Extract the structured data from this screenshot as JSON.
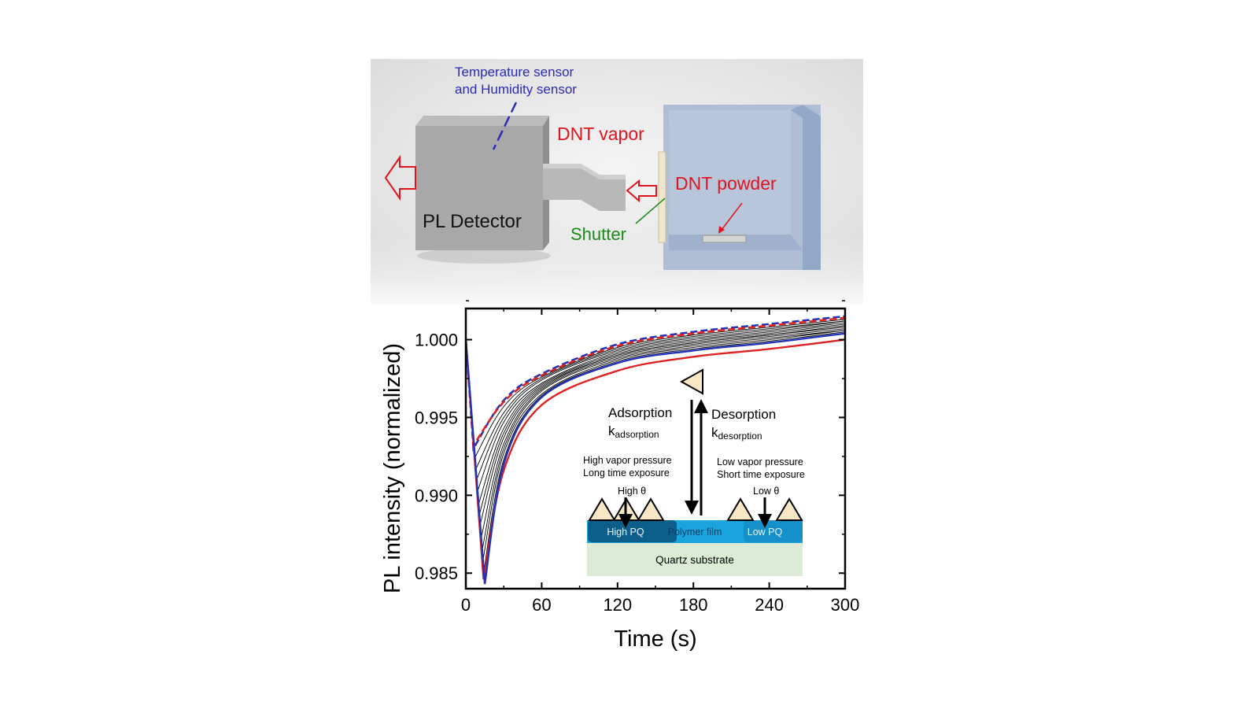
{
  "setup": {
    "sensor_label_line1": "Temperature sensor",
    "sensor_label_line2": "and Humidity sensor",
    "vapor_label": "DNT vapor",
    "powder_label": "DNT powder",
    "detector_label": "PL Detector",
    "shutter_label": "Shutter",
    "colors": {
      "blue_text": "#2a2ab8",
      "red_text": "#e0141e",
      "green_text": "#1a8a1a"
    }
  },
  "chart_data": {
    "type": "line",
    "xlabel": "Time (s)",
    "ylabel": "PL intensity (normalized)",
    "xlim": [
      0,
      300
    ],
    "ylim": [
      0.984,
      1.002
    ],
    "xticks": [
      0,
      60,
      120,
      180,
      240,
      300
    ],
    "xtick_labels": [
      "0",
      "60",
      "120",
      "180",
      "240",
      "300"
    ],
    "yticks": [
      0.985,
      0.99,
      0.995,
      1.0
    ],
    "ytick_labels": [
      "0.985",
      "0.990",
      "0.995",
      "1.000"
    ],
    "grid": false,
    "series": [
      {
        "color": "#2233bb",
        "style": "dashed",
        "points": [
          [
            0,
            1.0
          ],
          [
            6,
            0.993
          ],
          [
            30,
            0.9961
          ],
          [
            60,
            0.9978
          ],
          [
            120,
            0.9997
          ],
          [
            180,
            1.0005
          ],
          [
            240,
            1.001
          ],
          [
            300,
            1.0015
          ]
        ]
      },
      {
        "color": "#dd2222",
        "style": "dashed",
        "points": [
          [
            0,
            1.0
          ],
          [
            6,
            0.9932
          ],
          [
            30,
            0.996
          ],
          [
            60,
            0.9977
          ],
          [
            120,
            0.9996
          ],
          [
            180,
            1.0004
          ],
          [
            240,
            1.0009
          ],
          [
            300,
            1.0014
          ]
        ]
      },
      {
        "color": "#000000",
        "style": "thin",
        "points": [
          [
            0,
            1.0
          ],
          [
            7,
            0.9924
          ],
          [
            30,
            0.9957
          ],
          [
            60,
            0.9976
          ],
          [
            120,
            0.9995
          ],
          [
            180,
            1.0003
          ],
          [
            240,
            1.0008
          ],
          [
            300,
            1.0013
          ]
        ]
      },
      {
        "color": "#000000",
        "style": "thin",
        "points": [
          [
            0,
            1.0
          ],
          [
            7.5,
            0.9916
          ],
          [
            30,
            0.9953
          ],
          [
            60,
            0.9975
          ],
          [
            120,
            0.9994
          ],
          [
            180,
            1.0002
          ],
          [
            240,
            1.0007
          ],
          [
            300,
            1.0012
          ]
        ]
      },
      {
        "color": "#000000",
        "style": "thin",
        "points": [
          [
            0,
            1.0
          ],
          [
            8,
            0.9909
          ],
          [
            30,
            0.995
          ],
          [
            60,
            0.9974
          ],
          [
            120,
            0.9993
          ],
          [
            180,
            1.0001
          ],
          [
            240,
            1.0006
          ],
          [
            300,
            1.0012
          ]
        ]
      },
      {
        "color": "#000000",
        "style": "thin",
        "points": [
          [
            0,
            1.0
          ],
          [
            9,
            0.9902
          ],
          [
            30,
            0.9947
          ],
          [
            60,
            0.9972
          ],
          [
            120,
            0.9992
          ],
          [
            180,
            1.0
          ],
          [
            240,
            1.0005
          ],
          [
            300,
            1.0011
          ]
        ]
      },
      {
        "color": "#000000",
        "style": "thin",
        "points": [
          [
            0,
            1.0
          ],
          [
            10,
            0.9894
          ],
          [
            30,
            0.9943
          ],
          [
            60,
            0.9971
          ],
          [
            120,
            0.9991
          ],
          [
            180,
            0.9999
          ],
          [
            240,
            1.0004
          ],
          [
            300,
            1.001
          ]
        ]
      },
      {
        "color": "#000000",
        "style": "thin",
        "points": [
          [
            0,
            1.0
          ],
          [
            10.5,
            0.9887
          ],
          [
            30,
            0.994
          ],
          [
            60,
            0.997
          ],
          [
            120,
            0.999
          ],
          [
            180,
            0.9998
          ],
          [
            240,
            1.0003
          ],
          [
            300,
            1.0009
          ]
        ]
      },
      {
        "color": "#000000",
        "style": "thin",
        "points": [
          [
            0,
            1.0
          ],
          [
            11,
            0.988
          ],
          [
            30,
            0.9937
          ],
          [
            60,
            0.9969
          ],
          [
            120,
            0.999
          ],
          [
            180,
            0.9998
          ],
          [
            240,
            1.0003
          ],
          [
            300,
            1.0008
          ]
        ]
      },
      {
        "color": "#000000",
        "style": "thin",
        "points": [
          [
            0,
            1.0
          ],
          [
            12,
            0.9872
          ],
          [
            30,
            0.9933
          ],
          [
            60,
            0.9968
          ],
          [
            120,
            0.9989
          ],
          [
            180,
            0.9997
          ],
          [
            240,
            1.0002
          ],
          [
            300,
            1.0007
          ]
        ]
      },
      {
        "color": "#000000",
        "style": "thin",
        "points": [
          [
            0,
            1.0
          ],
          [
            13,
            0.9865
          ],
          [
            30,
            0.993
          ],
          [
            60,
            0.9967
          ],
          [
            120,
            0.9988
          ],
          [
            180,
            0.9996
          ],
          [
            240,
            1.0001
          ],
          [
            300,
            1.0006
          ]
        ]
      },
      {
        "color": "#000000",
        "style": "thin",
        "points": [
          [
            0,
            1.0
          ],
          [
            13.5,
            0.9858
          ],
          [
            30,
            0.9927
          ],
          [
            60,
            0.9965
          ],
          [
            120,
            0.9987
          ],
          [
            180,
            0.9995
          ],
          [
            240,
            1.0
          ],
          [
            300,
            1.0006
          ]
        ]
      },
      {
        "color": "#000000",
        "style": "thin",
        "points": [
          [
            0,
            1.0
          ],
          [
            14,
            0.985
          ],
          [
            30,
            0.9923
          ],
          [
            60,
            0.9964
          ],
          [
            120,
            0.9986
          ],
          [
            180,
            0.9994
          ],
          [
            240,
            0.9999
          ],
          [
            300,
            1.0005
          ]
        ]
      },
      {
        "color": "#dd2222",
        "style": "solid",
        "points": [
          [
            0,
            1.0
          ],
          [
            14,
            0.9846
          ],
          [
            30,
            0.9916
          ],
          [
            60,
            0.9958
          ],
          [
            120,
            0.998
          ],
          [
            180,
            0.9989
          ],
          [
            240,
            0.9994
          ],
          [
            300,
            1.0
          ]
        ]
      },
      {
        "color": "#2233bb",
        "style": "solid",
        "points": [
          [
            0,
            1.0
          ],
          [
            15,
            0.9843
          ],
          [
            30,
            0.992
          ],
          [
            60,
            0.9963
          ],
          [
            120,
            0.9985
          ],
          [
            180,
            0.9993
          ],
          [
            240,
            0.9998
          ],
          [
            300,
            1.0004
          ]
        ]
      }
    ],
    "inset": {
      "adsorption": "Adsorption",
      "k_adsorption_base": "k",
      "k_adsorption_sub": "adsorption",
      "desorption": "Desorption",
      "k_desorption_base": "k",
      "k_desorption_sub": "desorption",
      "high_line1": "High vapor pressure",
      "high_line2": "Long time exposure",
      "high_theta": "High θ",
      "low_line1": "Low vapor pressure",
      "low_line2": "Short time exposure",
      "low_theta": "Low θ",
      "high_pq": "High PQ",
      "polymer_film": "Polymer film",
      "low_pq": "Low PQ",
      "substrate": "Quartz substrate",
      "colors": {
        "film": "#1aa3dc",
        "high_pq": "#0b5f8a",
        "low_pq": "#1590c8",
        "substrate": "#dcebd5",
        "molecule": "#f7e7c4"
      }
    }
  }
}
